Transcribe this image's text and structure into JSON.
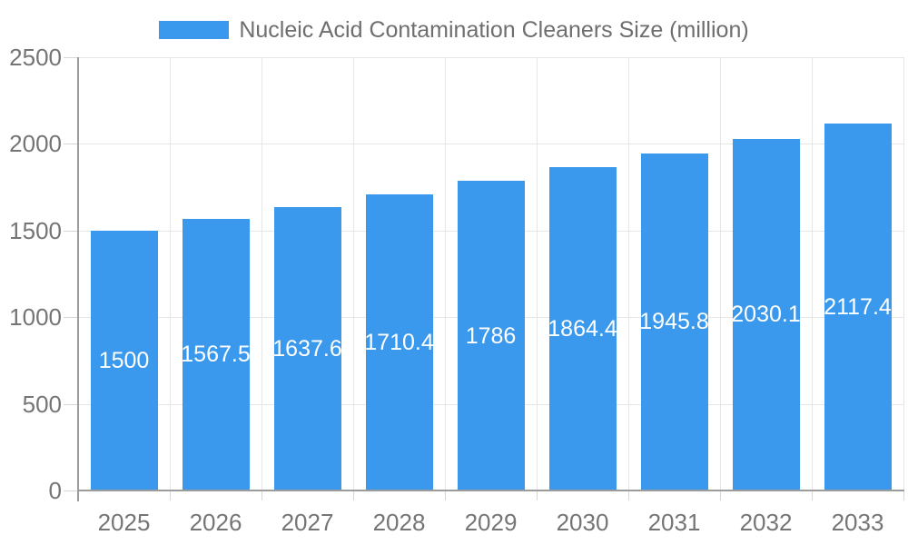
{
  "legend": {
    "label": "Nucleic Acid Contamination Cleaners Size (million)"
  },
  "colors": {
    "bar": "#3a99ec",
    "grid": "#e6e6e6",
    "tick": "#d6d6d6",
    "axis": "#9c9c9c",
    "tick_text": "#757575",
    "legend_text": "#6e6e6e",
    "bar_label_text": "#ffffff",
    "background": "#ffffff"
  },
  "chart_data": {
    "type": "bar",
    "title": "Nucleic Acid Contamination Cleaners Size (million)",
    "categories": [
      "2025",
      "2026",
      "2027",
      "2028",
      "2029",
      "2030",
      "2031",
      "2032",
      "2033"
    ],
    "values": [
      1500,
      1567.5,
      1637.6,
      1710.4,
      1786,
      1864.4,
      1945.8,
      2030.1,
      2117.4
    ],
    "value_labels": [
      "1500",
      "1567.5",
      "1637.6",
      "1710.4",
      "1786",
      "1864.4",
      "1945.8",
      "2030.1",
      "2117.4"
    ],
    "xlabel": "",
    "ylabel": "",
    "ylim": [
      0,
      2500
    ],
    "yticks": [
      0,
      500,
      1000,
      1500,
      2000,
      2500
    ],
    "grid": true,
    "legend_position": "top",
    "value_label_position": "inside-center"
  }
}
